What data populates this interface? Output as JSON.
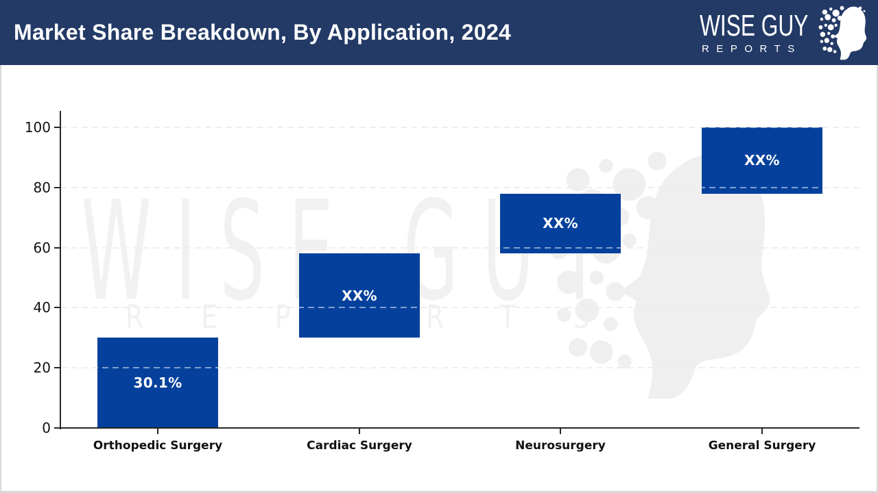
{
  "header": {
    "title": "Market Share Breakdown, By Application, 2024",
    "logo": {
      "name": "WISE GUY",
      "sub": "REPORTS"
    }
  },
  "watermark": {
    "line1": "WISE GUY",
    "line2": "REPORTS"
  },
  "colors": {
    "header_bg": "#233A66",
    "bar": "#05419C",
    "axis": "#262626",
    "grid": "#DCDCDC",
    "watermark": "#F0F0F1",
    "title_text": "#FFFFFF",
    "bar_label_text": "#FFFFFF",
    "tick_text": "#111111"
  },
  "chart_data": {
    "type": "bar",
    "subtype": "waterfall",
    "title": "Market Share Breakdown, By Application, 2024",
    "categories": [
      "Orthopedic Surgery",
      "Cardiac Surgery",
      "Neurosurgery",
      "General Surgery"
    ],
    "segments": [
      {
        "category": "Orthopedic Surgery",
        "start": 0,
        "end": 30.1,
        "label": "30.1%"
      },
      {
        "category": "Cardiac Surgery",
        "start": 30.1,
        "end": 58,
        "label": "XX%"
      },
      {
        "category": "Neurosurgery",
        "start": 58,
        "end": 78,
        "label": "XX%"
      },
      {
        "category": "General Surgery",
        "start": 78,
        "end": 100,
        "label": "XX%"
      }
    ],
    "ylim": [
      0,
      100
    ],
    "yticks": [
      0,
      20,
      40,
      60,
      80,
      100
    ],
    "xlabel": "",
    "ylabel": "",
    "grid": "horizontal dashed",
    "legend": "none",
    "note": "floating waterfall-style bars; undisclosed values masked as XX%"
  }
}
